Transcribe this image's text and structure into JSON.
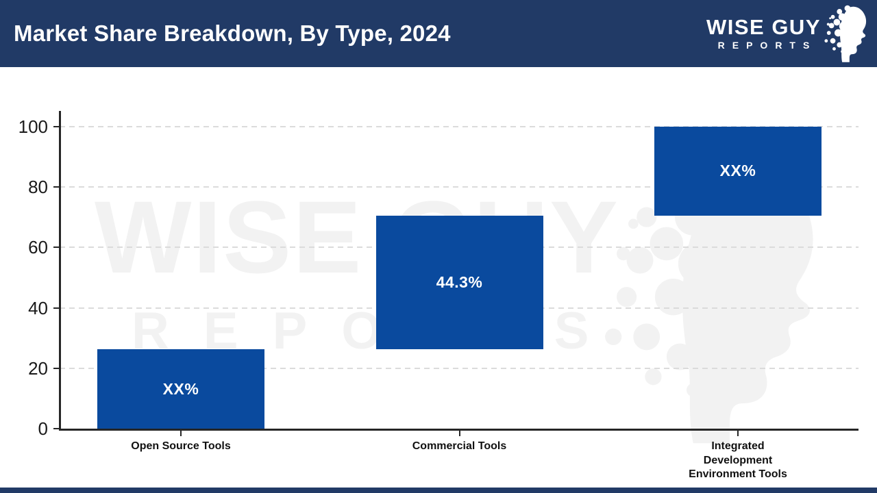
{
  "header": {
    "title": "Market Share Breakdown, By Type, 2024",
    "logo": {
      "line1": "WISE GUY",
      "line2": "REPORTS"
    }
  },
  "watermark": {
    "line1": "WISE GUY",
    "line2": "REPORTS"
  },
  "colors": {
    "header_bg": "#213A66",
    "footer_bg": "#213A66",
    "bar_fill": "#0A4A9E",
    "bar_label_text": "#FFFFFF",
    "watermark_gray": "#F2F2F2",
    "gridline": "#DBDBDB",
    "axis": "#262626",
    "tick_label": "#1A1A1A"
  },
  "chart_data": {
    "type": "bar",
    "subtype": "stacked-percentage-waterfall",
    "title": "Market Share Breakdown, By Type, 2024",
    "categories": [
      "Open Source Tools",
      "Commercial Tools",
      "Integrated Development Environment Tools"
    ],
    "category_tick_labels": [
      "Open Source Tools",
      "Commercial Tools",
      "Integrated\nDevelopment\nEnvironment Tools"
    ],
    "bars": [
      {
        "category": "Open Source Tools",
        "start": 0,
        "end": 26.3,
        "value_label": "XX%",
        "value_masked": true
      },
      {
        "category": "Commercial Tools",
        "start": 26.3,
        "end": 70.6,
        "value": 44.3,
        "value_label": "44.3%",
        "value_masked": false
      },
      {
        "category": "Integrated Development Environment Tools",
        "start": 70.6,
        "end": 100,
        "value_label": "XX%",
        "value_masked": true
      }
    ],
    "xlabel": "",
    "ylabel": "",
    "ylim": [
      0,
      105
    ],
    "yticks": [
      0,
      20,
      40,
      60,
      80,
      100
    ],
    "grid": "horizontal-dashed",
    "legend": "none"
  }
}
